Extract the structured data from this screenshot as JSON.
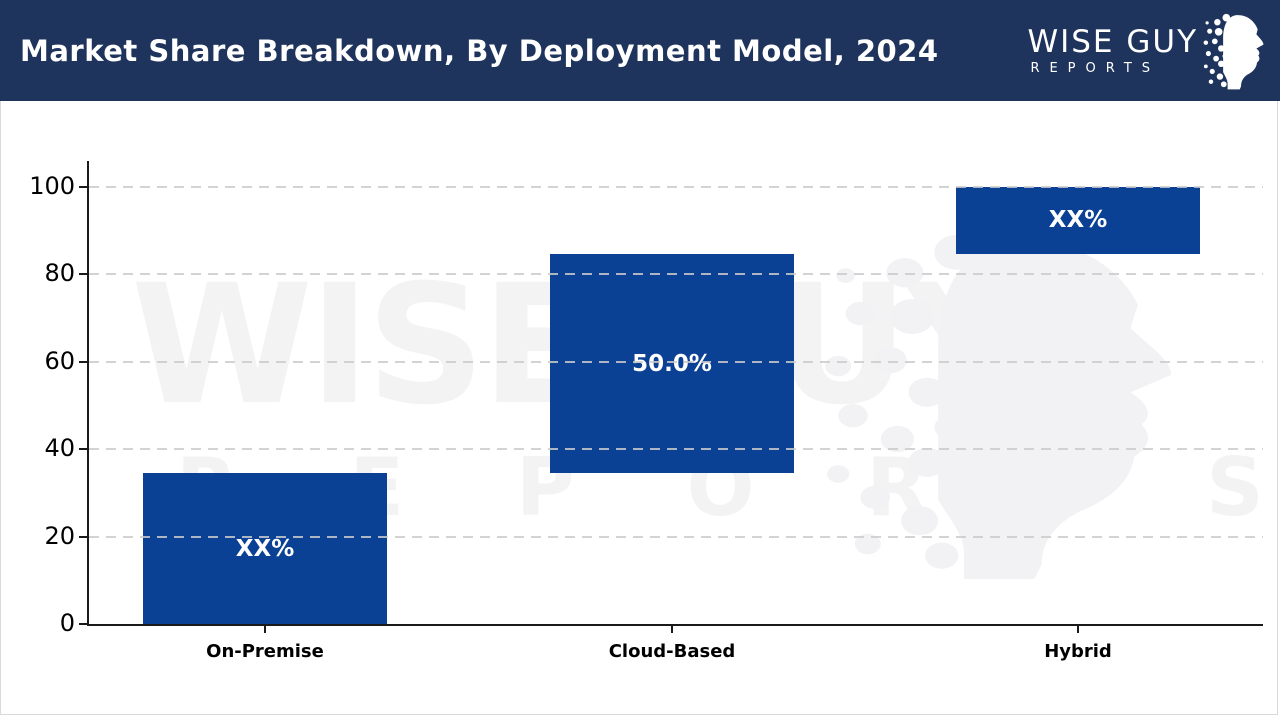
{
  "header": {
    "title": "Market Share Breakdown, By Deployment Model, 2024",
    "bg_color": "#1f345c",
    "logo": {
      "line1": "WISE GUY",
      "line2": "REPORTS"
    }
  },
  "watermark": {
    "line1": "WISE GUY",
    "line2": "R E P O R T S"
  },
  "chart_data": {
    "type": "bar",
    "subtype": "floating-waterfall",
    "title": "Market Share Breakdown, By Deployment Model, 2024",
    "categories": [
      "On-Premise",
      "Cloud-Based",
      "Hybrid"
    ],
    "bars": [
      {
        "category": "On-Premise",
        "start": 0,
        "end": 34.5,
        "value_label": "XX%"
      },
      {
        "category": "Cloud-Based",
        "start": 34.5,
        "end": 84.5,
        "value_label": "50.0%"
      },
      {
        "category": "Hybrid",
        "start": 84.5,
        "end": 100,
        "value_label": "XX%"
      }
    ],
    "segment_values": [
      34.5,
      50.0,
      15.5
    ],
    "yticks": [
      0,
      20,
      40,
      60,
      80,
      100
    ],
    "ylim": [
      0,
      105
    ],
    "xlabel": "",
    "ylabel": "",
    "grid": "horizontal dashed, drawn over bars",
    "legend": "none",
    "bar_color": "#0b4195",
    "bar_label_color": "#ffffff"
  }
}
